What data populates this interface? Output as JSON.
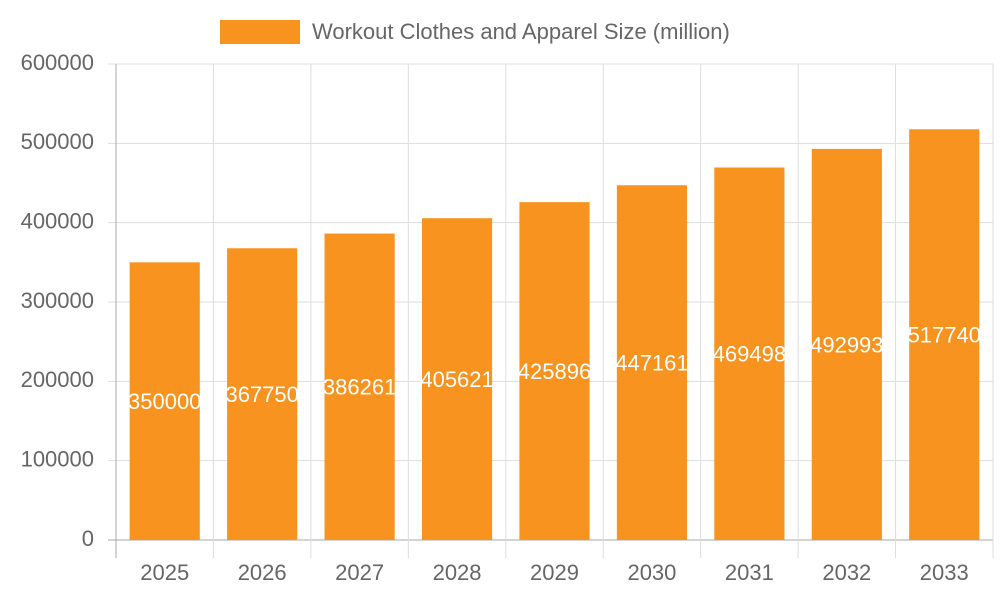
{
  "chart_data": {
    "type": "bar",
    "categories": [
      "2025",
      "2026",
      "2027",
      "2028",
      "2029",
      "2030",
      "2031",
      "2032",
      "2033"
    ],
    "series": [
      {
        "name": "Workout Clothes and Apparel Size (million)",
        "color": "#f7931e",
        "values": [
          350000,
          367750,
          386261,
          405621,
          425896,
          447161,
          469498,
          492993,
          517740
        ]
      }
    ],
    "ylim": [
      0,
      600000
    ],
    "yticks": [
      0,
      100000,
      200000,
      300000,
      400000,
      500000,
      600000
    ],
    "grid": true,
    "legend": "top",
    "data_labels": true
  }
}
